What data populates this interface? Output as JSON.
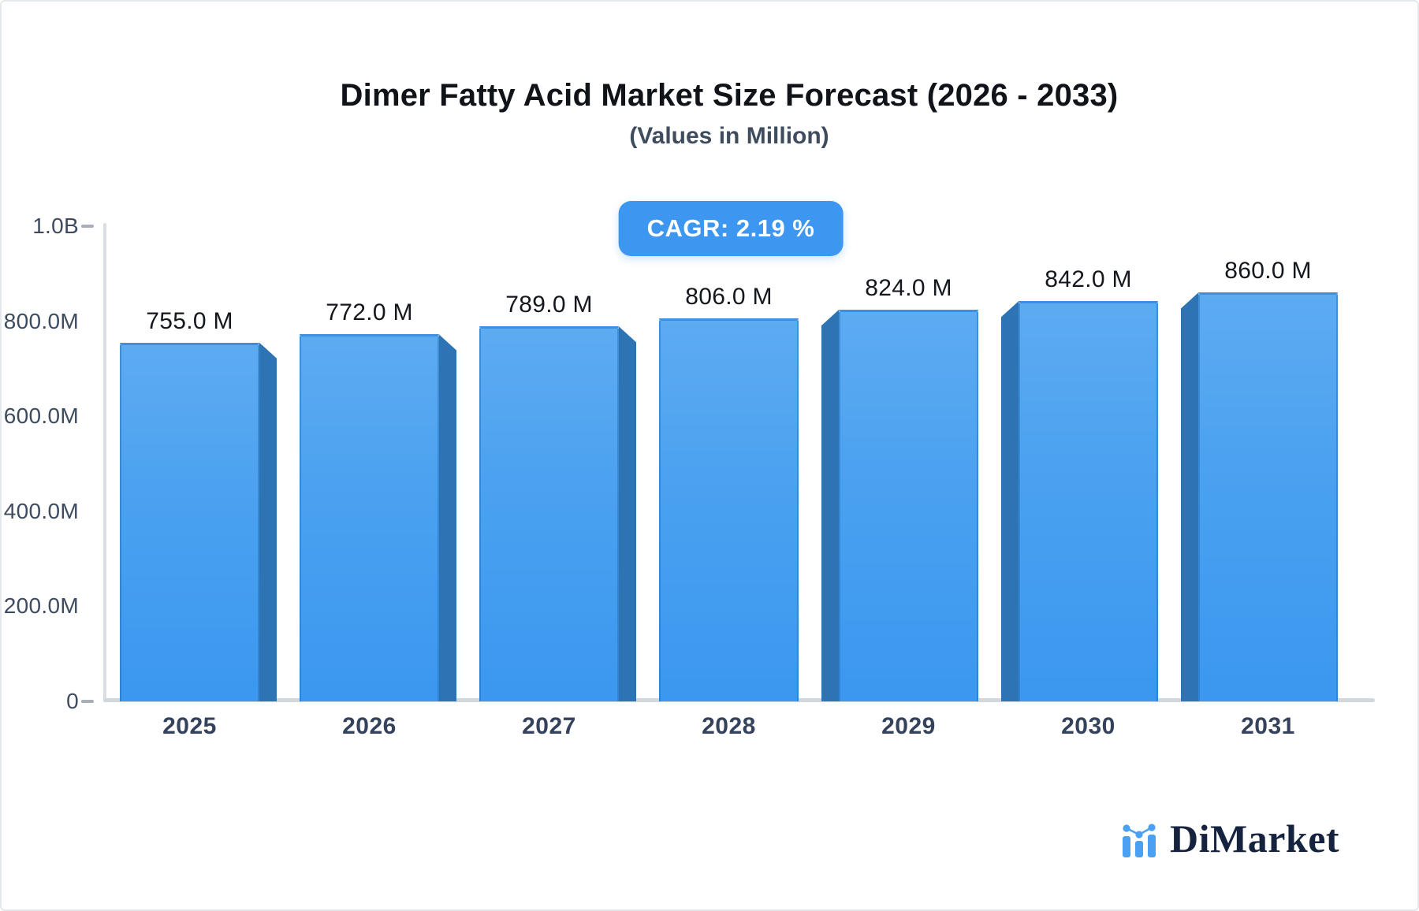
{
  "header": {
    "title": "Dimer Fatty Acid Market Size Forecast (2026 - 2033)",
    "subtitle": "(Values in Million)"
  },
  "badge": {
    "label": "CAGR: 2.19 %"
  },
  "chart_data": {
    "type": "bar",
    "title": "Dimer Fatty Acid Market Size Forecast (2026 - 2033)",
    "subtitle": "(Values in Million)",
    "categories": [
      "2025",
      "2026",
      "2027",
      "2028",
      "2029",
      "2030",
      "2031"
    ],
    "values": [
      755,
      772,
      789,
      806,
      824,
      842,
      860
    ],
    "bar_labels": [
      "755.0 M",
      "772.0 M",
      "789.0 M",
      "806.0 M",
      "824.0 M",
      "842.0 M",
      "860.0 M"
    ],
    "unit_suffix": "M",
    "xlabel": "",
    "ylabel": "",
    "ylim": [
      0,
      1000
    ],
    "grid": false,
    "legend": false,
    "y_ticks": [
      {
        "label": "1.0B",
        "value": 1000,
        "tick": true
      },
      {
        "label": "800.0M",
        "value": 800,
        "tick": false
      },
      {
        "label": "600.0M",
        "value": 600,
        "tick": false
      },
      {
        "label": "400.0M",
        "value": 400,
        "tick": false
      },
      {
        "label": "200.0M",
        "value": 200,
        "tick": false
      },
      {
        "label": "0",
        "value": 0,
        "tick": true
      }
    ]
  },
  "brand": {
    "name": "DiMarket",
    "icon": "bar-line-chart-icon"
  },
  "colors": {
    "bar_face_top": "#5dabf1",
    "bar_face_bottom": "#3b97ef",
    "bar_side": "#2d74b5",
    "bar_top_edge": "#3e8fdf",
    "badge_bg": "#3d97f0",
    "badge_text": "#ffffff",
    "axis_line": "#d2d7dc",
    "tick_dash": "#a8afb9",
    "title_text": "#101418",
    "subtitle_text": "#3f4c5e",
    "y_tick_text": "#3e4b5f",
    "x_cat_text": "#35425c",
    "value_label_text": "#14171d",
    "brand_text": "#16233f",
    "brand_icon_blue": "#4aa0f2"
  }
}
